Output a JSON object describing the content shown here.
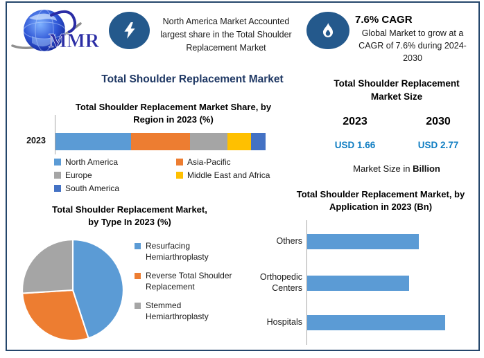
{
  "header": {
    "logo_text": "MMR",
    "highlight_region": {
      "icon": "lightning-icon",
      "text": "North America Market Accounted largest share in the Total Shoulder Replacement Market"
    },
    "highlight_cagr": {
      "icon": "flame-icon",
      "title": "7.6% CAGR",
      "text": "Global Market to grow at a CAGR of 7.6% during 2024-2030"
    }
  },
  "main_title": "Total Shoulder Replacement Market",
  "market_size_panel": {
    "title_lines": [
      "Total Shoulder Replacement",
      "Market Size"
    ],
    "years": [
      "2023",
      "2030"
    ],
    "values": [
      "USD 1.66",
      "USD 2.77"
    ],
    "caption_text": "Market Size in ",
    "caption_bold": "Billion",
    "value_color": "#0f7dc2"
  },
  "colors": {
    "page_border": "#24466b",
    "icon_badge": "#24598c",
    "main_title": "#1f3864",
    "accent_blue": "#5b9bd5"
  },
  "chart_data": [
    {
      "id": "region-share",
      "type": "bar",
      "subtype": "stacked-horizontal",
      "title": "Total Shoulder Replacement Market Share, by Region in 2023 (%)",
      "title_lines": [
        "Total Shoulder Replacement Market Share, by",
        "Region in 2023 (%)"
      ],
      "categories": [
        "2023"
      ],
      "series": [
        {
          "name": "North America",
          "color": "#5b9bd5",
          "values": [
            36
          ]
        },
        {
          "name": "Asia-Pacific",
          "color": "#ed7d31",
          "values": [
            28
          ]
        },
        {
          "name": "Europe",
          "color": "#a5a5a5",
          "values": [
            18
          ]
        },
        {
          "name": "Middle East and Africa",
          "color": "#ffc000",
          "values": [
            11
          ]
        },
        {
          "name": "South America",
          "color": "#4472c4",
          "values": [
            7
          ]
        }
      ],
      "unit": "%",
      "values_estimated": true,
      "legend_position": "bottom",
      "value_axis_hidden": true
    },
    {
      "id": "type-share",
      "type": "pie",
      "title": "Total Shoulder Replacement Market, by Type In 2023 (%)",
      "title_lines": [
        "Total Shoulder Replacement Market,",
        "by Type In 2023 (%)"
      ],
      "slices": [
        {
          "label": "Resurfacing Hemiarthroplasty",
          "label_lines": [
            "Resurfacing",
            "Hemiarthroplasty"
          ],
          "color": "#5b9bd5",
          "value": 45
        },
        {
          "label": "Reverse Total Shoulder Replacement",
          "label_lines": [
            "Reverse Total Shoulder",
            "Replacement"
          ],
          "color": "#ed7d31",
          "value": 29
        },
        {
          "label": "Stemmed Hemiarthroplasty",
          "label_lines": [
            "Stemmed",
            "Hemiarthroplasty"
          ],
          "color": "#a5a5a5",
          "value": 26
        }
      ],
      "unit": "%",
      "start_angle_deg": 0,
      "values_estimated": true,
      "legend_position": "right"
    },
    {
      "id": "application-size",
      "type": "bar",
      "subtype": "horizontal",
      "title": "Total Shoulder Replacement Market, by Application in 2023 (Bn)",
      "title_lines": [
        "Total Shoulder Replacement Market, by",
        "Application in 2023 (Bn)"
      ],
      "categories": [
        "Others",
        "Orthopedic Centers",
        "Hospitals"
      ],
      "values_relative_to_max": [
        0.81,
        0.74,
        1.0
      ],
      "bar_color": "#5b9bd5",
      "unit": "Bn",
      "values_estimated": true,
      "data_labels": false,
      "value_axis_hidden": true
    }
  ]
}
